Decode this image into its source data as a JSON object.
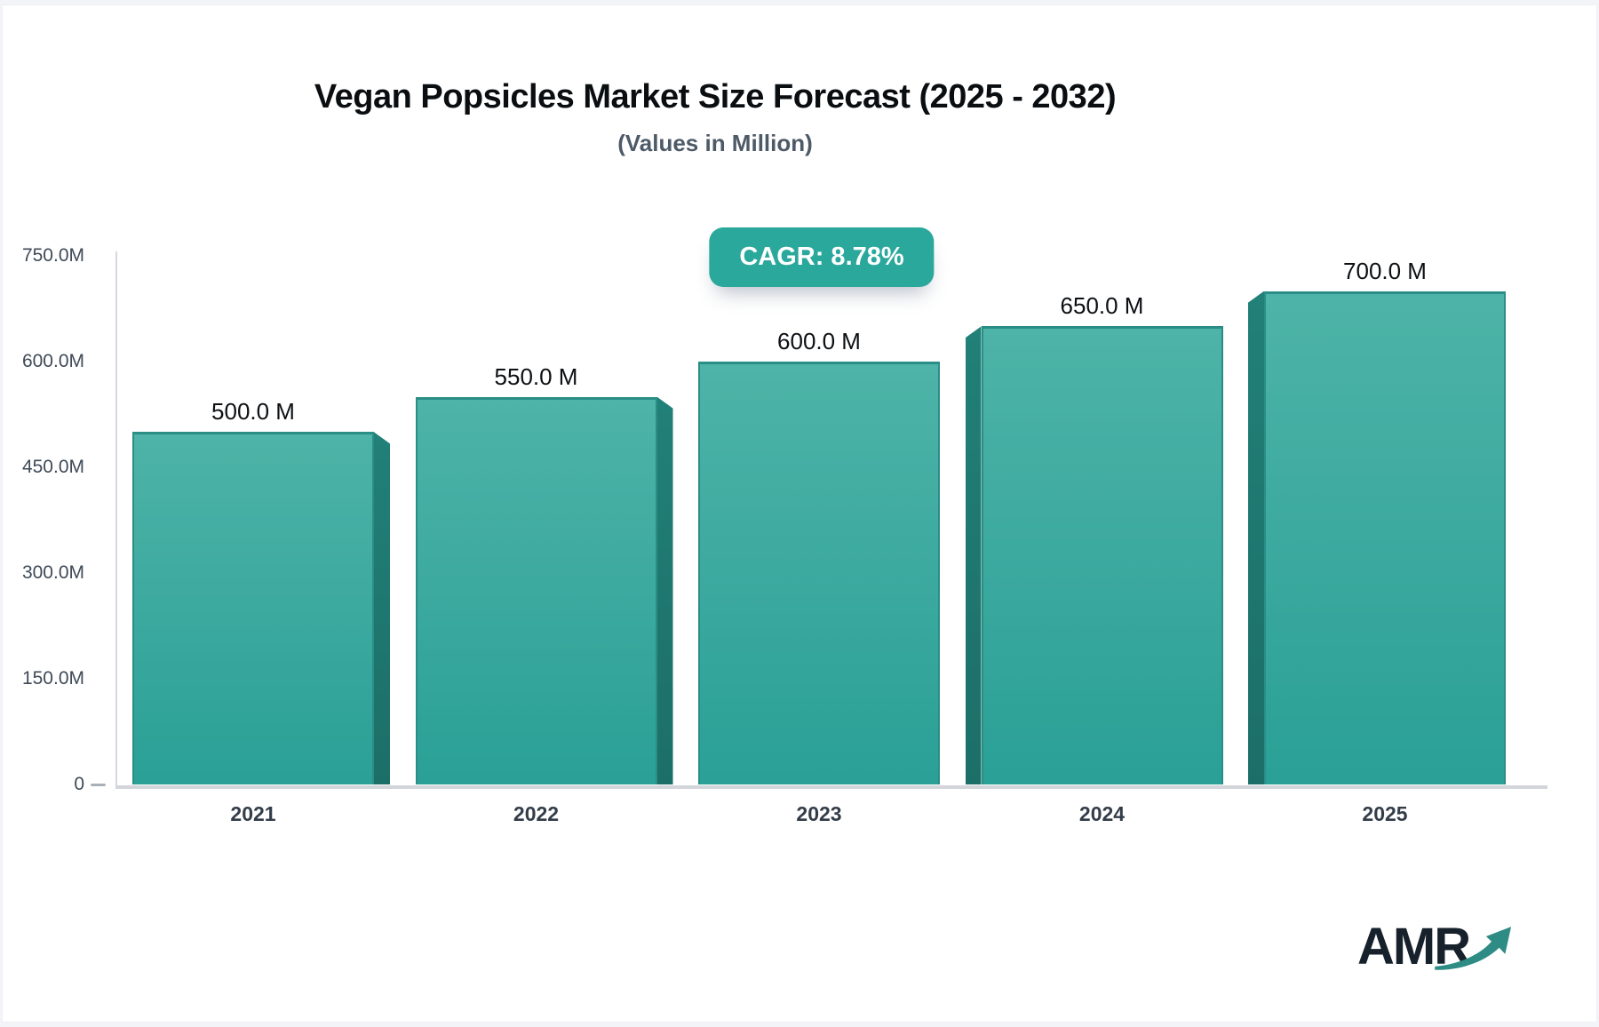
{
  "title": "Vegan Popsicles Market Size Forecast (2025 - 2032)",
  "subtitle": "(Values in Million)",
  "cagr_badge": "CAGR: 8.78%",
  "logo": {
    "text": "AMR"
  },
  "colors": {
    "bar_face_top": "#4eb3a8",
    "bar_face_bottom": "#2aa096",
    "bar_edge": "#2b8e86",
    "bar_side_top": "#218078",
    "bar_side_bottom": "#1c6f68",
    "badge_bg": "#2aa89c",
    "arrow": "#2e8c85"
  },
  "chart_data": {
    "type": "bar",
    "categories": [
      "2021",
      "2022",
      "2023",
      "2024",
      "2025"
    ],
    "values": [
      500,
      550,
      600,
      650,
      700
    ],
    "bar_labels": [
      "500.0 M",
      "550.0 M",
      "600.0 M",
      "650.0 M",
      "700.0 M"
    ],
    "title": "Vegan Popsicles Market Size Forecast (2025 - 2032)",
    "subtitle": "(Values in Million)",
    "annotation": "CAGR: 8.78%",
    "xlabel": "",
    "ylabel": "",
    "ylim": [
      0,
      750
    ],
    "yticks": [
      "750.0M",
      "600.0M",
      "450.0M",
      "300.0M",
      "150.0M",
      "0"
    ],
    "ytick_values": [
      750,
      600,
      450,
      300,
      150,
      0
    ],
    "grid": false,
    "legend": false,
    "style": "3d-extruded-bars-central-perspective"
  }
}
